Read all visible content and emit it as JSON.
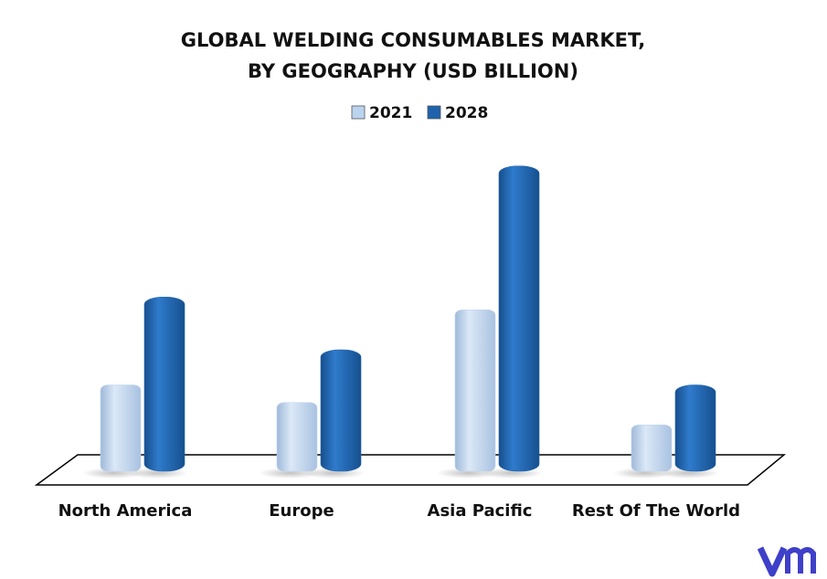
{
  "chart_data": {
    "type": "bar",
    "title": [
      "GLOBAL WELDING CONSUMABLES MARKET,",
      "BY GEOGRAPHY (USD BILLION)"
    ],
    "categories": [
      "North America",
      "Europe",
      "Asia Pacific",
      "Rest Of The World"
    ],
    "series": [
      {
        "name": "2021",
        "color": "#bcd3ee",
        "values": [
          5.4,
          4.3,
          10.1,
          2.9
        ]
      },
      {
        "name": "2028",
        "color": "#1f63ad",
        "values": [
          10.9,
          7.6,
          19.1,
          5.4
        ]
      }
    ],
    "ylim": [
      0,
      20
    ]
  }
}
